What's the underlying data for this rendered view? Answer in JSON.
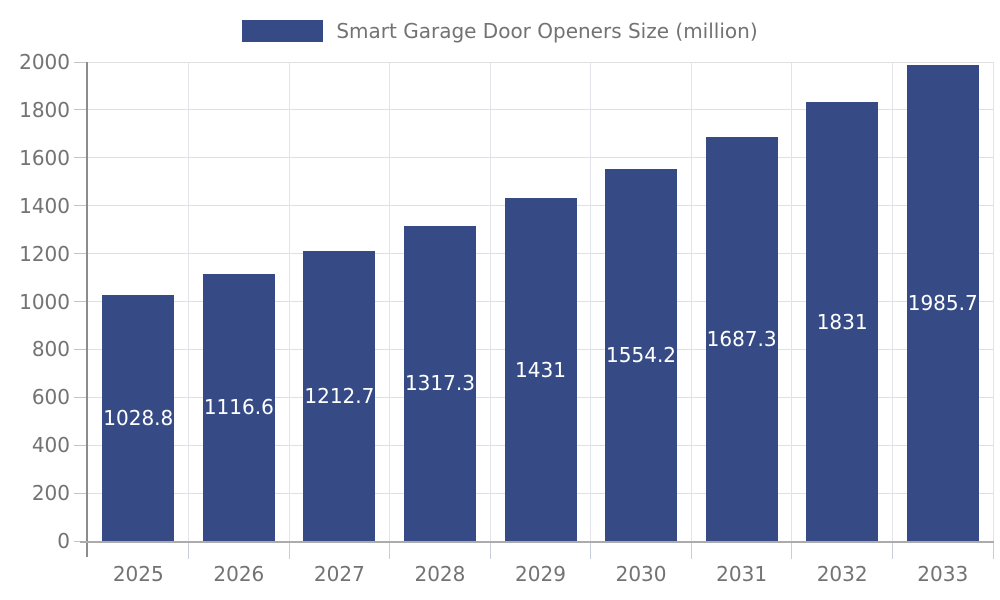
{
  "legend": {
    "label": "Smart Garage Door Openers Size (million)"
  },
  "chart_data": {
    "type": "bar",
    "title": "",
    "series_name": "Smart Garage Door Openers Size (million)",
    "categories": [
      "2025",
      "2026",
      "2027",
      "2028",
      "2029",
      "2030",
      "2031",
      "2032",
      "2033"
    ],
    "values": [
      1028.8,
      1116.6,
      1212.7,
      1317.3,
      1431,
      1554.2,
      1687.3,
      1831,
      1985.7
    ],
    "xlabel": "",
    "ylabel": "",
    "ylim": [
      0,
      2000
    ],
    "y_ticks": [
      0,
      200,
      400,
      600,
      800,
      1000,
      1200,
      1400,
      1600,
      1800,
      2000
    ],
    "grid": "horizontal gridlines at y ticks, vertical gridlines at category boundaries",
    "legend_position": "top-center",
    "bar_color": "#364b85",
    "value_label_color": "#ffffff",
    "axis_text_color": "#737373",
    "gridline_color": "#e0e0e0",
    "value_labels_position": "vertically centered inside bars"
  }
}
